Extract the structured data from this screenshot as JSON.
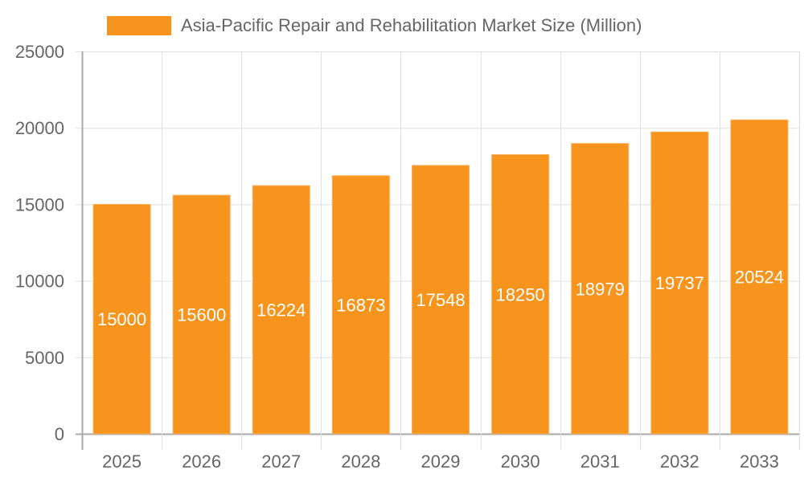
{
  "chart_data": {
    "type": "bar",
    "title": "",
    "legend": [
      {
        "label": "Asia-Pacific Repair and Rehabilitation Market Size (Million)",
        "color": "#F7941D"
      }
    ],
    "legend_position": "top",
    "categories": [
      "2025",
      "2026",
      "2027",
      "2028",
      "2029",
      "2030",
      "2031",
      "2032",
      "2033"
    ],
    "series": [
      {
        "name": "Asia-Pacific Repair and Rehabilitation Market Size (Million)",
        "values": [
          15000,
          15600,
          16224,
          16873,
          17548,
          18250,
          18979,
          19737,
          20524
        ],
        "color": "#F7941D"
      }
    ],
    "data_labels": [
      "15000",
      "15600",
      "16224",
      "16873",
      "17548",
      "18250",
      "18979",
      "19737",
      "20524"
    ],
    "xlabel": "",
    "ylabel": "",
    "ylim": [
      0,
      25000
    ],
    "yticks": [
      0,
      5000,
      10000,
      15000,
      20000,
      25000
    ],
    "grid": true
  },
  "legend": {
    "label": "Asia-Pacific Repair and Rehabilitation Market Size (Million)"
  }
}
